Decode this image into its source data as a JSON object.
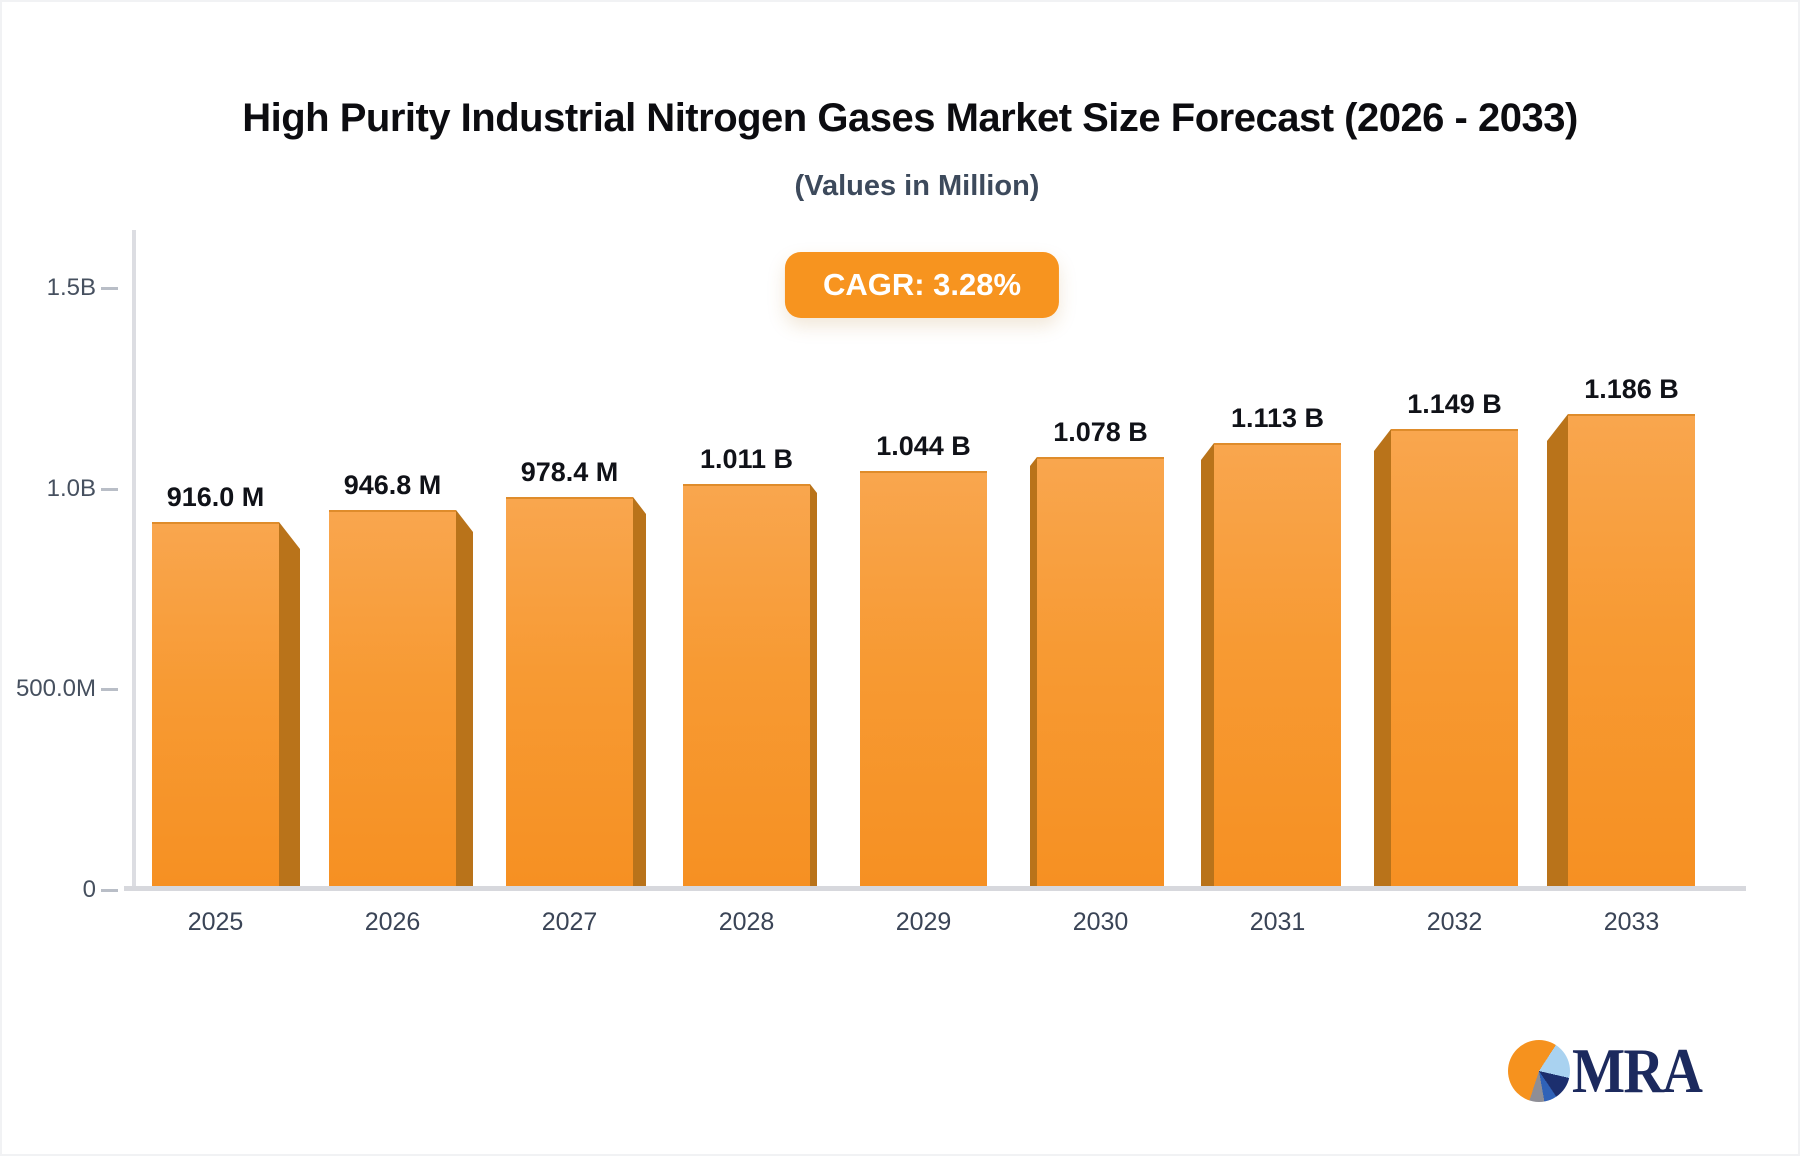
{
  "header": {
    "title": "High Purity Industrial Nitrogen Gases Market Size Forecast (2026 - 2033)",
    "subtitle": "(Values in Million)",
    "cagr_badge": "CAGR: 3.28%"
  },
  "chart_data": {
    "type": "bar",
    "title": "High Purity Industrial Nitrogen Gases Market Size Forecast (2026 - 2033)",
    "unit_note": "(Values in Million)",
    "cagr_percent": 3.28,
    "categories": [
      "2025",
      "2026",
      "2027",
      "2028",
      "2029",
      "2030",
      "2031",
      "2032",
      "2033"
    ],
    "values_millions": [
      916.0,
      946.8,
      978.4,
      1011,
      1044,
      1078,
      1113,
      1149,
      1186
    ],
    "value_labels": [
      "916.0 M",
      "946.8 M",
      "978.4 M",
      "1.011 B",
      "1.044 B",
      "1.078 B",
      "1.113 B",
      "1.149 B",
      "1.186 B"
    ],
    "xlabel": "",
    "ylabel": "",
    "ylim_millions": [
      0,
      1500
    ],
    "grid": "off",
    "legend": "none",
    "y_axis": {
      "ticks": [
        {
          "label": "1.5B",
          "value_millions": 1500
        },
        {
          "label": "1.0B",
          "value_millions": 1000
        },
        {
          "label": "500.0M",
          "value_millions": 500
        },
        {
          "label": "0",
          "value_millions": 0
        }
      ]
    },
    "bar_style": {
      "effect": "3d-perspective-center-vanishing",
      "face_top": "#f9a64e",
      "face_bottom": "#f69022",
      "side": "#b9731a",
      "top_edge": "#df8c2b"
    }
  },
  "colors": {
    "accent": "#f7941f",
    "axis_line": "#dcdde2",
    "baseline": "#d7d8dd",
    "tick": "#b9bec7",
    "tick_label": "#46505f",
    "year_label": "#3a4456",
    "value_label": "#101218",
    "title": "#0c0c10",
    "subtitle": "#3d4a5c",
    "logo_navy": "#1c2a5e",
    "logo_orange": "#f6921e"
  },
  "footer": {
    "logo_text": "MRA"
  }
}
